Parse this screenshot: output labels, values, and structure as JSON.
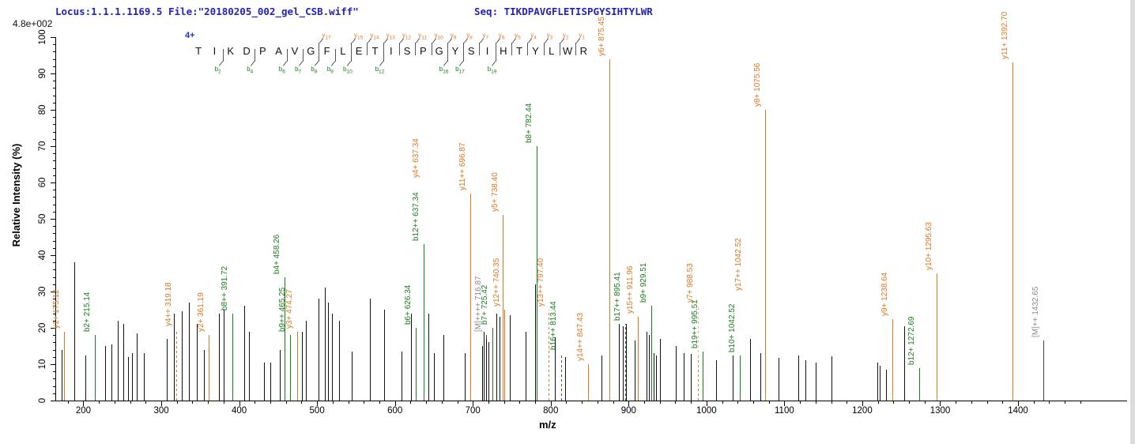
{
  "header": {
    "locus_file": "Locus:1.1.1.1169.5 File:\"20180205_002_gel_CSB.wiff\"",
    "seq_label": "Seq:",
    "sequence_text": "Seq: TIKDPAVGFLETISPGYSIHTYLWR",
    "max_intensity": "4.8e+002",
    "precursor_charge": "4+"
  },
  "axes": {
    "y_title": "Relative  Intensity (%)",
    "x_title": "m/z"
  },
  "ladder": {
    "residues": [
      "T",
      "I",
      "K",
      "D",
      "P",
      "A",
      "V",
      "G",
      "F",
      "L",
      "E",
      "T",
      "I",
      "S",
      "P",
      "G",
      "Y",
      "S",
      "I",
      "H",
      "T",
      "Y",
      "L",
      "W",
      "R"
    ],
    "y_ions": [
      {
        "ion": "y",
        "n": 17,
        "after": 8
      },
      {
        "ion": "y",
        "n": 15,
        "after": 10
      },
      {
        "ion": "y",
        "n": 14,
        "after": 11
      },
      {
        "ion": "y",
        "n": 13,
        "after": 12
      },
      {
        "ion": "y",
        "n": 12,
        "after": 13
      },
      {
        "ion": "y",
        "n": 11,
        "after": 14
      },
      {
        "ion": "y",
        "n": 10,
        "after": 15
      },
      {
        "ion": "y",
        "n": 9,
        "after": 16
      },
      {
        "ion": "y",
        "n": 8,
        "after": 17
      },
      {
        "ion": "y",
        "n": 7,
        "after": 18
      },
      {
        "ion": "y",
        "n": 6,
        "after": 19
      },
      {
        "ion": "y",
        "n": 5,
        "after": 20
      },
      {
        "ion": "y",
        "n": 4,
        "after": 21
      },
      {
        "ion": "y",
        "n": 3,
        "after": 22
      },
      {
        "ion": "y",
        "n": 2,
        "after": 23
      },
      {
        "ion": "y",
        "n": 1,
        "after": 24
      }
    ],
    "b_ions": [
      {
        "ion": "b",
        "n": 2,
        "after": 2
      },
      {
        "ion": "b",
        "n": 4,
        "after": 4
      },
      {
        "ion": "b",
        "n": 6,
        "after": 6
      },
      {
        "ion": "b",
        "n": 7,
        "after": 7
      },
      {
        "ion": "b",
        "n": 8,
        "after": 8
      },
      {
        "ion": "b",
        "n": 9,
        "after": 9
      },
      {
        "ion": "b",
        "n": 10,
        "after": 10
      },
      {
        "ion": "b",
        "n": 12,
        "after": 12
      },
      {
        "ion": "b",
        "n": 16,
        "after": 16
      },
      {
        "ion": "b",
        "n": 17,
        "after": 17
      },
      {
        "ion": "b",
        "n": 19,
        "after": 19
      }
    ]
  },
  "colors": {
    "y_ion": "#dd7722",
    "b_ion": "#1a7d1a",
    "precursor_line": "#444444",
    "precursor_label": "#8a8a8a",
    "unassigned": "#111111",
    "header_blue": "#2222bb"
  },
  "chart_data": {
    "type": "bar",
    "title": "MS/MS fragmentation spectrum",
    "xlabel": "m/z",
    "ylabel": "Relative Intensity (%)",
    "xlim": [
      165,
      1540
    ],
    "ylim": [
      0,
      100
    ],
    "x_major_ticks": [
      200,
      300,
      400,
      500,
      600,
      700,
      800,
      900,
      1000,
      1100,
      1200,
      1300,
      1400
    ],
    "x_minor_tick_step": 20,
    "y_major_tick_step": 10,
    "y_minor_tick_step": 2,
    "grid": false,
    "legend": false,
    "series": [
      {
        "name": "y-ions",
        "peaks": [
          {
            "mz": 175.12,
            "i": 19,
            "label": "y1+ 175.12"
          },
          {
            "mz": 319.18,
            "i": 19.5,
            "label": "y4++ 319.18",
            "dashed": true
          },
          {
            "mz": 361.19,
            "i": 18,
            "label": "y2+ 361.19"
          },
          {
            "mz": 474.27,
            "i": 19,
            "label": "y3+ 474.27"
          },
          {
            "mz": 637.34,
            "i": 43,
            "label": "y4+ 637.34",
            "labelExtraOffset": 80,
            "lineHidden": true
          },
          {
            "mz": 696.87,
            "i": 57,
            "label": "y11++ 696.87"
          },
          {
            "mz": 738.4,
            "i": 51,
            "label": "y5+ 738.40"
          },
          {
            "mz": 740.35,
            "i": 25,
            "label": "y12++ 740.35"
          },
          {
            "mz": 797.4,
            "i": 25,
            "label": "y13++ 797.40",
            "dashed": true
          },
          {
            "mz": 847.43,
            "i": 10,
            "label": "y14++ 847.43"
          },
          {
            "mz": 875.45,
            "i": 94,
            "label": "y6+ 875.45"
          },
          {
            "mz": 911.96,
            "i": 23,
            "label": "y15++ 911.96"
          },
          {
            "mz": 988.53,
            "i": 12,
            "label": "y7+ 988.53",
            "labelExtraOffset": 65,
            "dashed": true
          },
          {
            "mz": 1042.52,
            "i": 13,
            "label": "y17++ 1042.52",
            "labelExtraOffset": 75,
            "labelDx": 8,
            "lineHidden": true
          },
          {
            "mz": 1075.56,
            "i": 80,
            "label": "y8+ 1075.56"
          },
          {
            "mz": 1238.64,
            "i": 22.5,
            "label": "y9+ 1238.64"
          },
          {
            "mz": 1295.63,
            "i": 35,
            "label": "y10+ 1295.63"
          },
          {
            "mz": 1392.7,
            "i": 93,
            "label": "y11+ 1392.70"
          }
        ]
      },
      {
        "name": "b-ions",
        "peaks": [
          {
            "mz": 215.14,
            "i": 18,
            "label": "b2+ 215.14"
          },
          {
            "mz": 391.72,
            "i": 24,
            "label": "b8++ 391.72"
          },
          {
            "mz": 458.26,
            "i": 34,
            "label": "b4+ 458.26"
          },
          {
            "mz": 465.25,
            "i": 18,
            "label": "b9++ 465.25"
          },
          {
            "mz": 626.34,
            "i": 20,
            "label": "b6+ 626.34"
          },
          {
            "mz": 637.34,
            "i": 43,
            "label": "b12++ 637.34"
          },
          {
            "mz": 725.42,
            "i": 20,
            "label": "b7+ 725.42"
          },
          {
            "mz": 782.44,
            "i": 70,
            "label": "b8+ 782.44"
          },
          {
            "mz": 813.44,
            "i": 13,
            "label": "b16++ 813.44",
            "dashed": true
          },
          {
            "mz": 895.41,
            "i": 21,
            "label": "b17++ 895.41",
            "dashed": true
          },
          {
            "mz": 929.51,
            "i": 26,
            "label": "b9+ 929.51"
          },
          {
            "mz": 995.51,
            "i": 13.5,
            "label": "b19++ 995.51"
          },
          {
            "mz": 1042.52,
            "i": 12.5,
            "label": "b10+ 1042.52"
          },
          {
            "mz": 1272.69,
            "i": 9,
            "label": "b12+ 1272.69"
          }
        ]
      },
      {
        "name": "precursor",
        "peaks": [
          {
            "mz": 716.87,
            "i": 18,
            "label": "[M]++++ 716.87"
          },
          {
            "mz": 1432.65,
            "i": 16.5,
            "label": "[M]++ 1432.65"
          }
        ]
      },
      {
        "name": "unassigned",
        "pairs": [
          [
            172,
            14
          ],
          [
            188,
            38
          ],
          [
            203,
            12.5
          ],
          [
            228,
            15
          ],
          [
            236,
            15.5
          ],
          [
            244,
            22
          ],
          [
            251,
            21
          ],
          [
            257,
            12
          ],
          [
            262,
            13
          ],
          [
            269,
            18.5
          ],
          [
            278,
            13
          ],
          [
            307,
            17
          ],
          [
            316,
            24
          ],
          [
            326,
            24.5
          ],
          [
            335,
            27
          ],
          [
            346,
            21
          ],
          [
            355,
            14
          ],
          [
            374,
            24
          ],
          [
            380,
            25
          ],
          [
            407,
            26
          ],
          [
            413,
            19
          ],
          [
            432,
            10.5
          ],
          [
            440,
            10.5
          ],
          [
            452,
            14
          ],
          [
            481,
            19
          ],
          [
            486,
            22
          ],
          [
            502,
            28
          ],
          [
            510,
            31
          ],
          [
            514,
            27
          ],
          [
            519,
            24
          ],
          [
            528,
            22
          ],
          [
            545,
            13.5
          ],
          [
            568,
            28
          ],
          [
            586,
            25
          ],
          [
            608,
            13.5
          ],
          [
            621,
            24
          ],
          [
            643,
            24
          ],
          [
            650,
            13
          ],
          [
            662,
            18
          ],
          [
            690,
            13
          ],
          [
            712,
            15
          ],
          [
            714,
            19
          ],
          [
            717,
            17
          ],
          [
            720,
            16
          ],
          [
            730,
            24
          ],
          [
            734,
            23
          ],
          [
            747,
            23.5
          ],
          [
            768,
            19
          ],
          [
            780,
            32
          ],
          [
            805,
            17.5
          ],
          [
            818,
            12
          ],
          [
            865,
            12.5
          ],
          [
            888,
            21
          ],
          [
            893,
            20.5
          ],
          [
            897,
            21
          ],
          [
            908,
            16.5
          ],
          [
            923,
            19
          ],
          [
            926,
            18
          ],
          [
            932,
            13
          ],
          [
            935,
            12.5
          ],
          [
            940,
            17
          ],
          [
            961,
            15
          ],
          [
            971,
            13
          ],
          [
            980,
            12.8
          ],
          [
            1012,
            11
          ],
          [
            1034,
            12.5
          ],
          [
            1056,
            17
          ],
          [
            1069,
            13
          ],
          [
            1092,
            11.8
          ],
          [
            1118,
            12.3
          ],
          [
            1127,
            11
          ],
          [
            1140,
            10.5
          ],
          [
            1160,
            12.2
          ],
          [
            1219,
            10.5
          ],
          [
            1222,
            9.5
          ],
          [
            1231,
            8.5
          ],
          [
            1254,
            20.4
          ]
        ]
      }
    ]
  }
}
